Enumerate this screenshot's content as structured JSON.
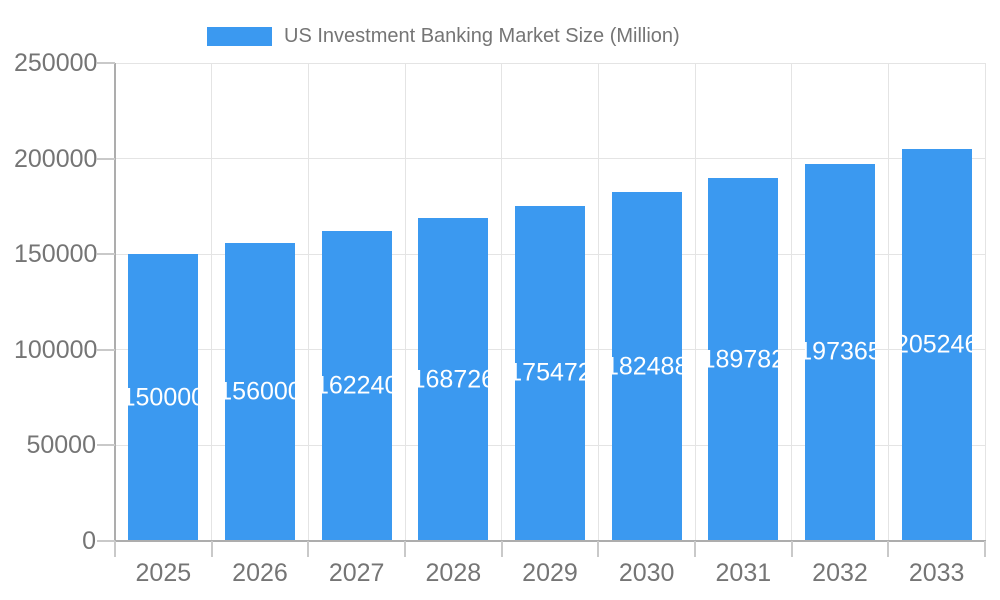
{
  "legend": {
    "label": "US Investment Banking Market Size (Million)"
  },
  "chart_data": {
    "type": "bar",
    "title": "US Investment Banking Market Size (Million)",
    "categories": [
      "2025",
      "2026",
      "2027",
      "2028",
      "2029",
      "2030",
      "2031",
      "2032",
      "2033"
    ],
    "values": [
      150000,
      156000,
      162240,
      168726,
      175472,
      182488,
      189782,
      197365,
      205246
    ],
    "xlabel": "",
    "ylabel": "",
    "ylim": [
      0,
      250000
    ],
    "yticks": [
      0,
      50000,
      100000,
      150000,
      200000,
      250000
    ],
    "ytick_labels": [
      "0",
      "50000",
      "100000",
      "150000",
      "200000",
      "250000"
    ],
    "grid": true,
    "legend_position": "top-center",
    "value_labels": "inside-center-white",
    "colors": {
      "bar": "#3b99f0",
      "axis_text": "#757575",
      "value_text": "#ffffff",
      "axis_line": "#adadad",
      "tick_line": "#c9c9c9",
      "gridline": "#e4e4e4",
      "background": "#ffffff"
    }
  }
}
